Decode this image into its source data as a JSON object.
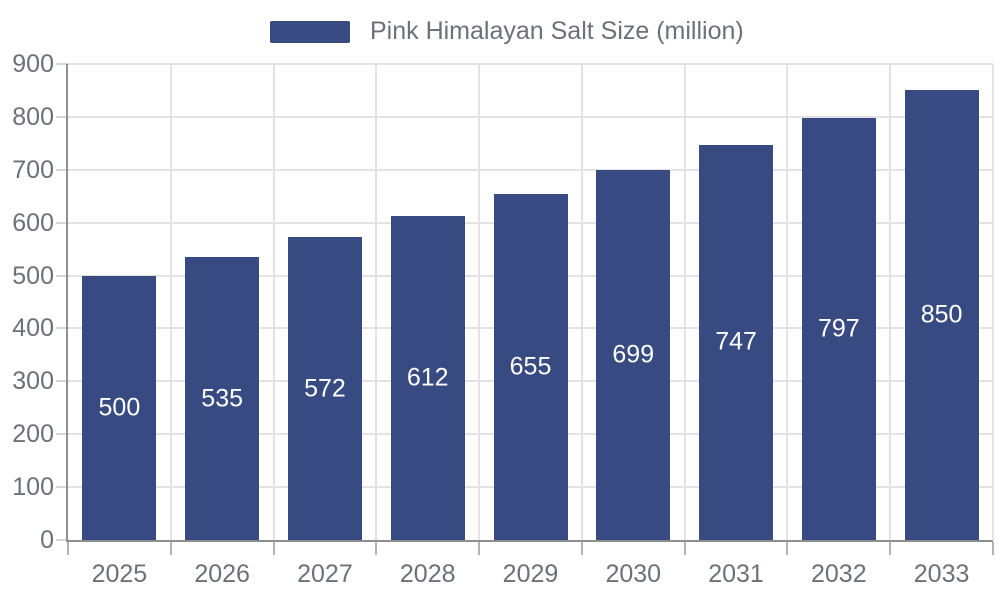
{
  "chart_data": {
    "type": "bar",
    "title": "Pink Himalayan Salt Size (million)",
    "legend": {
      "label": "Pink Himalayan Salt Size (million)",
      "position": "top-center"
    },
    "categories": [
      "2025",
      "2026",
      "2027",
      "2028",
      "2029",
      "2030",
      "2031",
      "2032",
      "2033"
    ],
    "values": [
      500,
      535,
      572,
      612,
      655,
      699,
      747,
      797,
      850
    ],
    "xlabel": "",
    "ylabel": "",
    "ylim": [
      0,
      900
    ],
    "yticks": [
      0,
      100,
      200,
      300,
      400,
      500,
      600,
      700,
      800,
      900
    ],
    "grid": true,
    "value_label_position": "inside-center",
    "colors": {
      "bar": "#384a82",
      "value_label": "#ffffff",
      "axis_text": "#6e7079",
      "axis_line": "#8f8f8f",
      "gridline": "#e3e3e3",
      "tick_x": "#b3b3b3",
      "tick_y": "#d5d5d5",
      "background": "#ffffff"
    }
  }
}
